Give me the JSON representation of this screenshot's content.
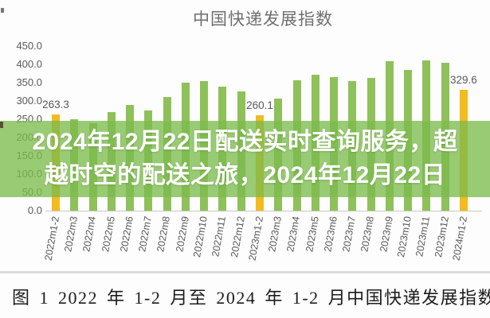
{
  "chart_data": {
    "type": "bar",
    "title": "中国快递发展指数",
    "categories": [
      "2022m1-2",
      "2022m3",
      "2022m4",
      "2022m5",
      "2022m6",
      "2022m7",
      "2022m8",
      "2022m9",
      "2022m10",
      "2022m11",
      "2022m12",
      "2023m1-2",
      "2023m3",
      "2023m4",
      "2023m5",
      "2023m6",
      "2023m7",
      "2023m8",
      "2023m9",
      "2023m10",
      "2023m11",
      "2023m12",
      "2024m1-2"
    ],
    "values": [
      263.3,
      248.5,
      239.2,
      268.0,
      289.3,
      273.8,
      310.6,
      349.8,
      354.1,
      338.6,
      325.2,
      260.1,
      305.8,
      356.2,
      371.9,
      365.4,
      352.6,
      361.3,
      408.2,
      383.5,
      409.0,
      402.7,
      329.6
    ],
    "highlight_indexes": [
      0,
      11,
      22
    ],
    "data_labels": {
      "0": "263.3",
      "11": "260.1",
      "22": "329.6"
    },
    "ylim": [
      0,
      450
    ],
    "ytick_step": 50,
    "yticks": [
      "450.0",
      "400.0",
      "350.0",
      "300.0",
      "250.0",
      "200.0",
      "150.0",
      "100.0",
      "50.0",
      "0.0"
    ],
    "xlabel": "",
    "ylabel": "",
    "grid": false,
    "legend": "none",
    "colors": {
      "bar": "#8ec15a",
      "highlight_bar": "#f2bb1e",
      "axis_text": "#595959",
      "axis_line": "#c9c9c9",
      "title_text": "#6f6f6f"
    }
  },
  "banner": {
    "lines": [
      "2024年12月22日配送实时查询服务，超",
      "越时空的配送之旅，2024年12月22日"
    ],
    "bg_color": "rgba(124,187,77,0.78)",
    "text_color": "#ffffff"
  },
  "caption": {
    "text": "图 1 2022 年 1-2 月至 2024 年 1-2 月中国快递发展指数"
  }
}
